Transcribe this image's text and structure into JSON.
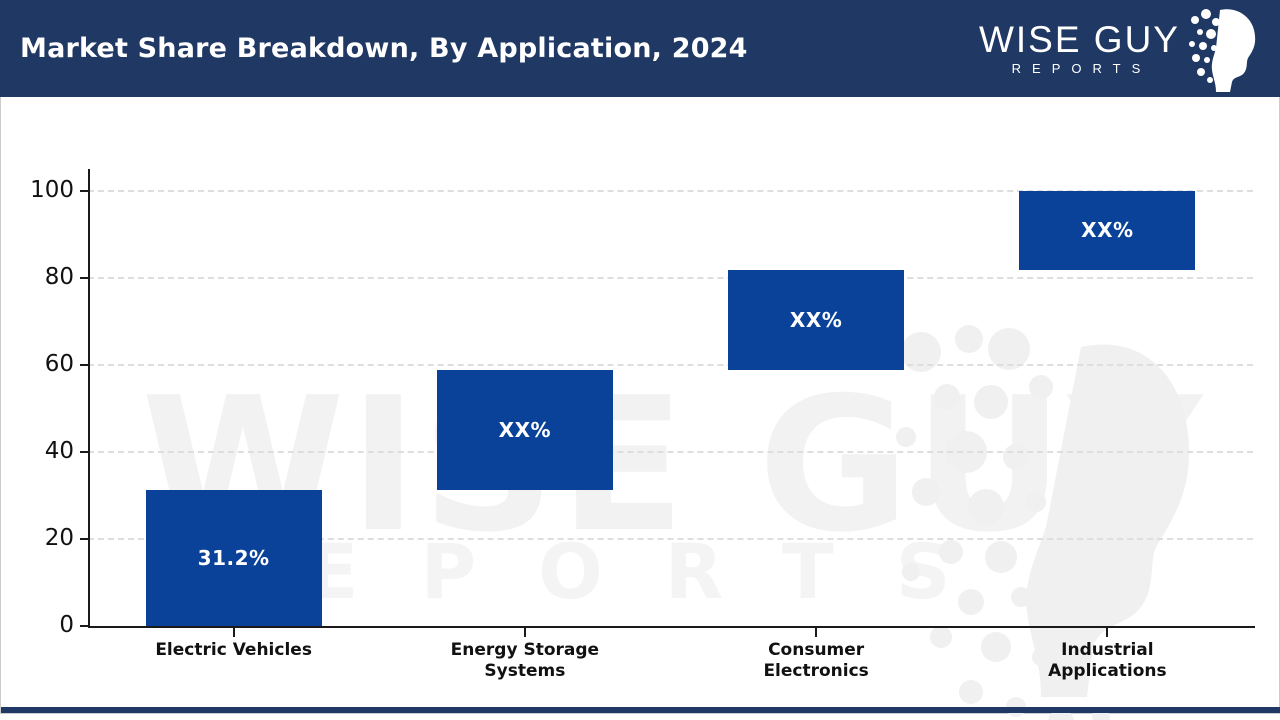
{
  "header": {
    "title": "Market Share Breakdown, By Application, 2024",
    "logo": {
      "line1": "WISE GUY",
      "line2": "REPORTS"
    }
  },
  "watermark": {
    "line1": "WISE GUY",
    "line2": "REPORTS"
  },
  "chart_data": {
    "type": "bar",
    "subtype": "waterfall",
    "title": "Market Share Breakdown, By Application, 2024",
    "categories": [
      "Electric Vehicles",
      "Energy Storage\nSystems",
      "Consumer\nElectronics",
      "Industrial\nApplications"
    ],
    "bars": [
      {
        "category": "Electric Vehicles",
        "label": "31.2%",
        "start": 0,
        "end": 31.2
      },
      {
        "category": "Energy Storage Systems",
        "label": "XX%",
        "start": 31.2,
        "end": 58.8
      },
      {
        "category": "Consumer Electronics",
        "label": "XX%",
        "start": 58.8,
        "end": 81.8
      },
      {
        "category": "Industrial Applications",
        "label": "XX%",
        "start": 81.8,
        "end": 100
      }
    ],
    "yticks": [
      0,
      20,
      40,
      60,
      80,
      100
    ],
    "ylim": [
      0,
      105
    ],
    "xlabel": "",
    "ylabel": "",
    "grid": "horizontal-dashed",
    "legend": "none"
  },
  "colors": {
    "header_bg": "#203864",
    "bar": "#0a429a",
    "bar_label": "#ffffff",
    "grid": "#dedede",
    "axis": "#1a1a1a",
    "watermark": "#f2f2f2",
    "card_border": "#cccccc"
  }
}
